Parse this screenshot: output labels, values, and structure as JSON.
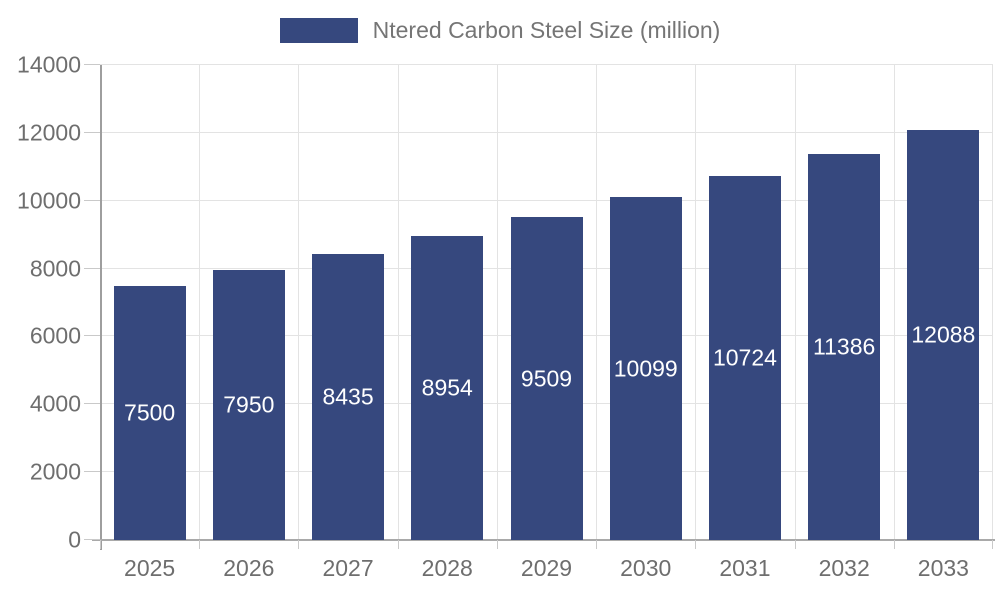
{
  "legend": {
    "label": "Ntered Carbon Steel Size (million)"
  },
  "chart_data": {
    "type": "bar",
    "title": "",
    "series_name": "Ntered Carbon Steel Size (million)",
    "categories": [
      "2025",
      "2026",
      "2027",
      "2028",
      "2029",
      "2030",
      "2031",
      "2032",
      "2033"
    ],
    "values": [
      7500,
      7950,
      8435,
      8954,
      9509,
      10099,
      10724,
      11386,
      12088
    ],
    "xlabel": "",
    "ylabel": "",
    "ylim": [
      0,
      14000
    ],
    "yticks": [
      0,
      2000,
      4000,
      6000,
      8000,
      10000,
      12000,
      14000
    ],
    "grid": true,
    "legend_position": "top",
    "value_labels": "inside-center"
  },
  "colors": {
    "bar_fill": "#36487E",
    "value_label_text": "#FFFFFF",
    "grid_line": "#E3E3E3",
    "axis_line": "#9E9E9E",
    "tick_mark": "#C9C9C9",
    "axis_label_text": "#6E6E6E",
    "legend_text": "#757575",
    "background": "#FFFFFF"
  }
}
